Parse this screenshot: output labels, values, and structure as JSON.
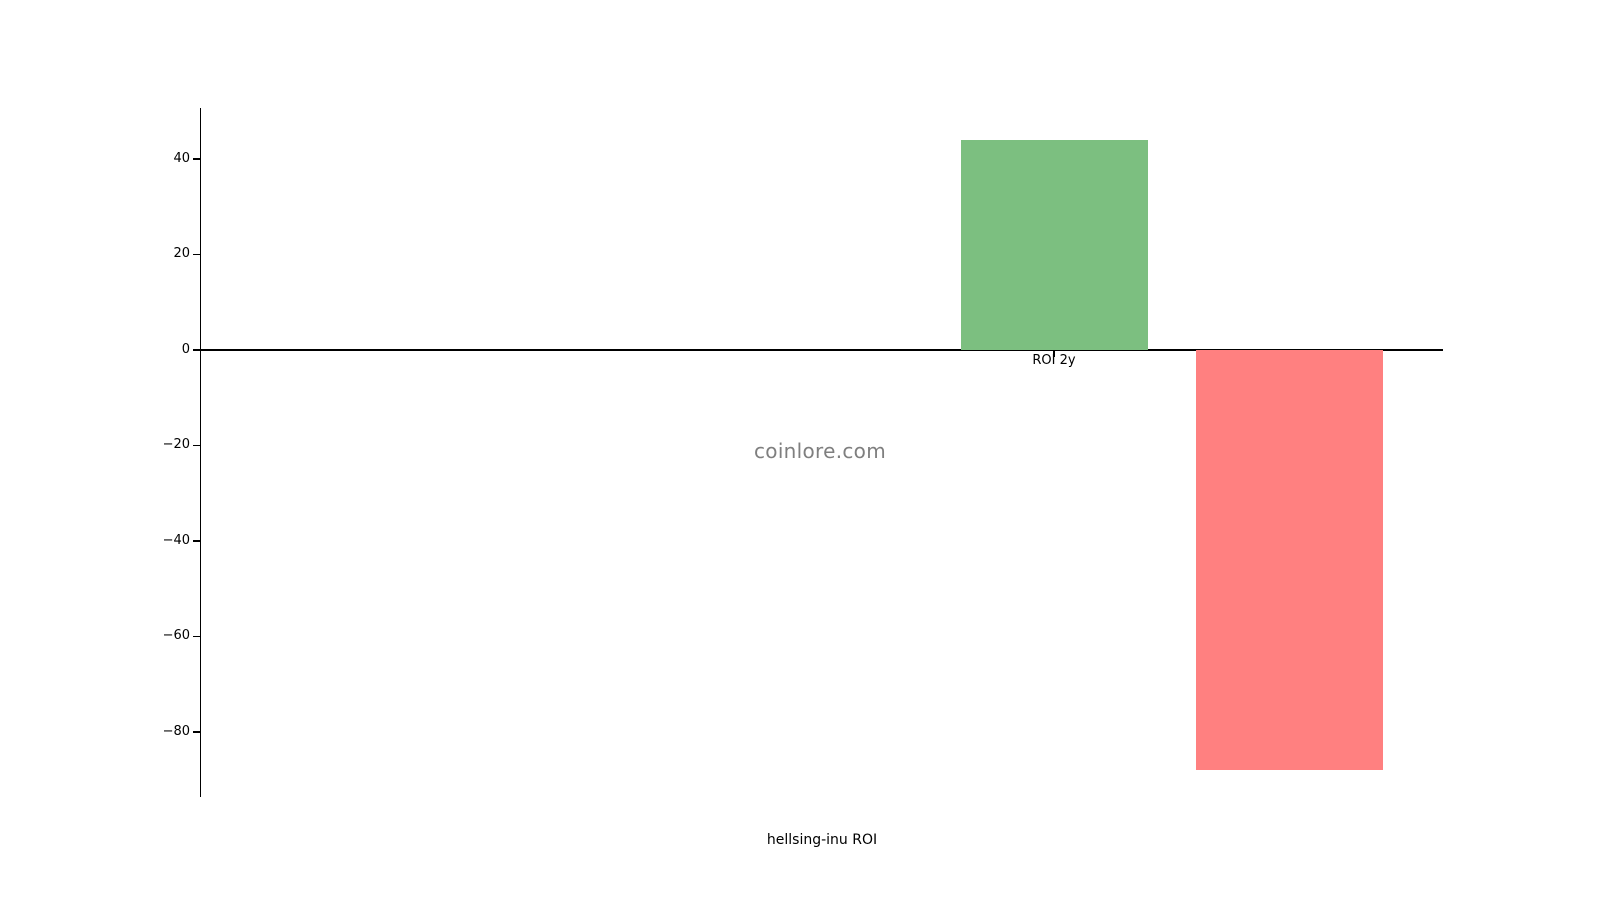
{
  "chart_data": {
    "type": "bar",
    "title": "",
    "xlabel": "hellsing-inu ROI",
    "ylabel": "",
    "watermark": "coinlore.com",
    "categories": [
      "ROI 2y",
      ""
    ],
    "values": [
      44,
      -88
    ],
    "bars": [
      {
        "category": "ROI 2y",
        "value": 44,
        "color": "#7cbf80"
      },
      {
        "category": "",
        "value": -88,
        "color": "#ff8080"
      }
    ],
    "yticks": [
      40,
      20,
      0,
      -20,
      -40,
      -60,
      -80
    ],
    "ytick_labels": [
      "40",
      "20",
      "0",
      "−20",
      "−40",
      "−60",
      "−80"
    ],
    "ylim": [
      -93.6,
      50.7
    ],
    "grid": false,
    "legend_position": "none",
    "colors": {
      "positive": "#7cbf80",
      "negative": "#ff8080",
      "axis": "#000000",
      "tick_text": "#000000",
      "watermark_text": "#7f7f7f",
      "background": "#ffffff"
    }
  }
}
